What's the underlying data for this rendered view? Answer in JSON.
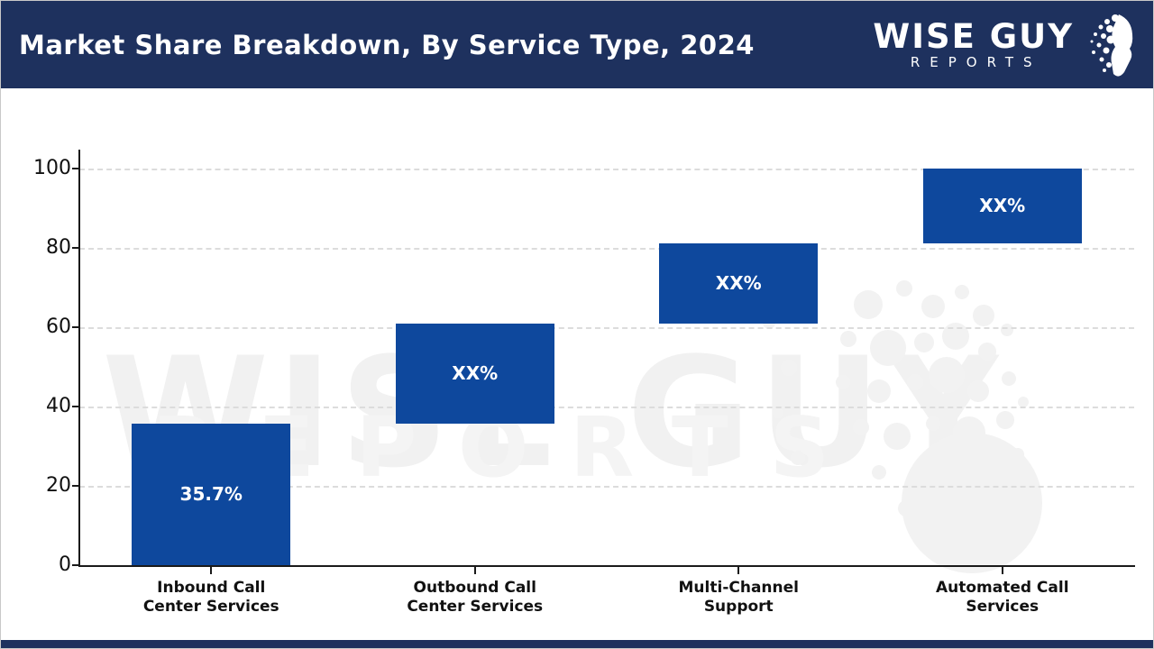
{
  "header": {
    "title": "Market Share Breakdown, By Service Type, 2024",
    "bg_color": "#1e315e",
    "logo": {
      "line1": "WISE GUY",
      "line2": "REPORTS"
    }
  },
  "watermark": {
    "line1": "WISE GUY",
    "line2": "REPORTS"
  },
  "chart_data": {
    "type": "bar",
    "subtype": "waterfall",
    "title": "Market Share Breakdown, By Service Type, 2024",
    "categories": [
      [
        "Inbound Call",
        "Center Services"
      ],
      [
        "Outbound Call",
        "Center Services"
      ],
      [
        "Multi-Channel",
        "Support"
      ],
      [
        "Automated Call",
        "Services"
      ]
    ],
    "segments": [
      {
        "start": 0,
        "end": 35.7,
        "label": "35.7%"
      },
      {
        "start": 35.7,
        "end": 61,
        "label": "XX%"
      },
      {
        "start": 61,
        "end": 81.2,
        "label": "XX%"
      },
      {
        "start": 81.2,
        "end": 100,
        "label": "XX%"
      }
    ],
    "bar_color": "#0e489d",
    "bar_label_color": "#ffffff",
    "yticks": [
      0,
      20,
      40,
      60,
      80,
      100
    ],
    "ylim": [
      0,
      105
    ],
    "xlabel": "",
    "ylabel": "",
    "legend": "none",
    "grid": "horizontal-dashed"
  },
  "footer": {
    "bg_color": "#1e315e"
  }
}
